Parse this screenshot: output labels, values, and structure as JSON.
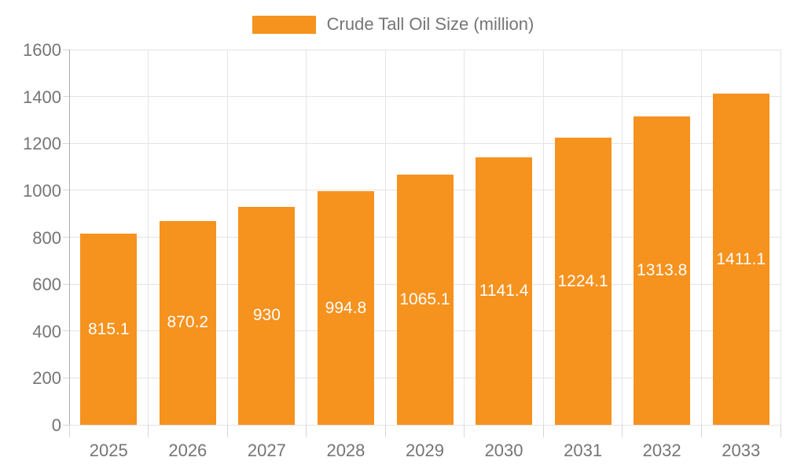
{
  "legend": {
    "label": "Crude Tall Oil Size (million)"
  },
  "chart_data": {
    "type": "bar",
    "title": "Crude Tall Oil Size (million)",
    "categories": [
      "2025",
      "2026",
      "2027",
      "2028",
      "2029",
      "2030",
      "2031",
      "2032",
      "2033"
    ],
    "values": [
      815.1,
      870.2,
      930,
      994.8,
      1065.1,
      1141.4,
      1224.1,
      1313.8,
      1411.1
    ],
    "bar_labels": [
      "815.1",
      "870.2",
      "930",
      "994.8",
      "1065.1",
      "1141.4",
      "1224.1",
      "1313.8",
      "1411.1"
    ],
    "xlabel": "",
    "ylabel": "",
    "ylim": [
      0,
      1600
    ],
    "ytick_step": 200,
    "ytick_labels": [
      "0",
      "200",
      "400",
      "600",
      "800",
      "1000",
      "1200",
      "1400",
      "1600"
    ],
    "grid": true,
    "legend_position": "top-center",
    "colors": {
      "bar": "#F6921E",
      "grid": "#E4E4E4",
      "axis_line": "#ADADAD",
      "tick": "#D6D6D6",
      "text": "#757575",
      "bar_label": "#FFFFFF",
      "background": "#FFFFFF"
    }
  }
}
